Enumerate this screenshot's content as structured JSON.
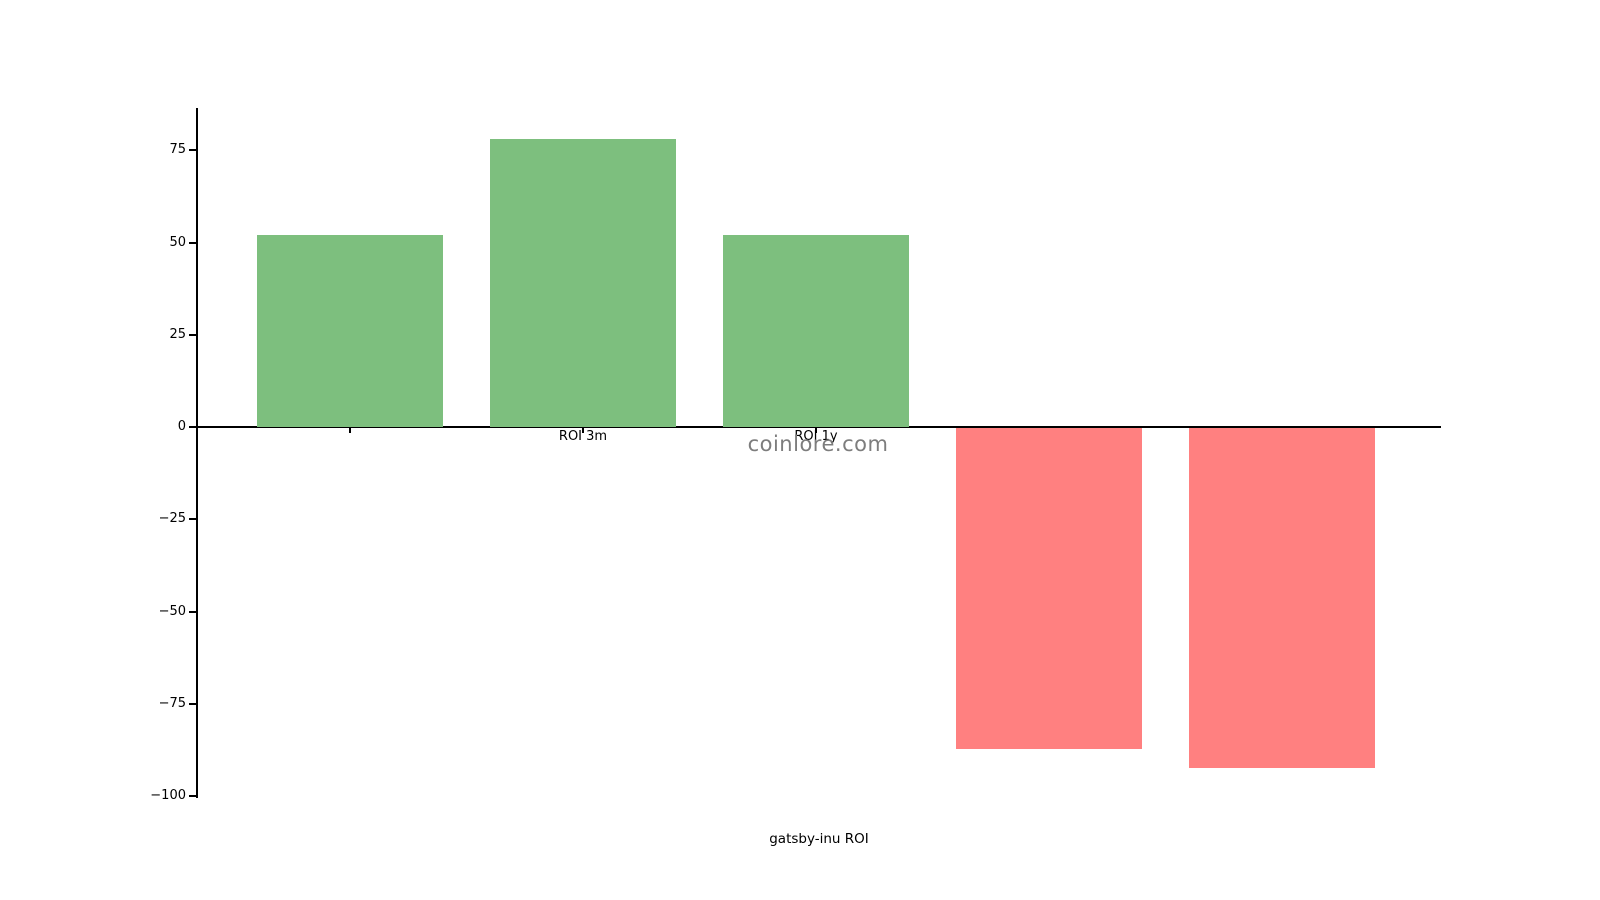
{
  "watermark": "coinlore.com",
  "chart_data": {
    "type": "bar",
    "title": "gatsby-inu ROI",
    "xlabel": "gatsby-inu ROI",
    "ylabel": "",
    "categories": [
      "",
      "ROI 3m",
      "ROI 1y",
      "",
      ""
    ],
    "values": [
      52,
      78,
      52,
      -87,
      -92
    ],
    "x_ticks": [
      {
        "index": 0,
        "label": ""
      },
      {
        "index": 1,
        "label": "ROI 3m"
      },
      {
        "index": 2,
        "label": "ROI 1y"
      }
    ],
    "y_ticks": [
      {
        "value": 75,
        "label": "75"
      },
      {
        "value": 50,
        "label": "50"
      },
      {
        "value": 25,
        "label": "25"
      },
      {
        "value": 0,
        "label": "0"
      },
      {
        "value": -25,
        "label": "−25"
      },
      {
        "value": -50,
        "label": "−50"
      },
      {
        "value": -75,
        "label": "−75"
      },
      {
        "value": -100,
        "label": "−100"
      }
    ],
    "ylim": [
      -100.5,
      86.5
    ],
    "grid": false,
    "legend": false,
    "colors": {
      "positive": "#7dbf7e",
      "negative": "#ff8080",
      "axis": "#000000",
      "watermark": "#7d7d7d",
      "background": "#ffffff"
    }
  }
}
